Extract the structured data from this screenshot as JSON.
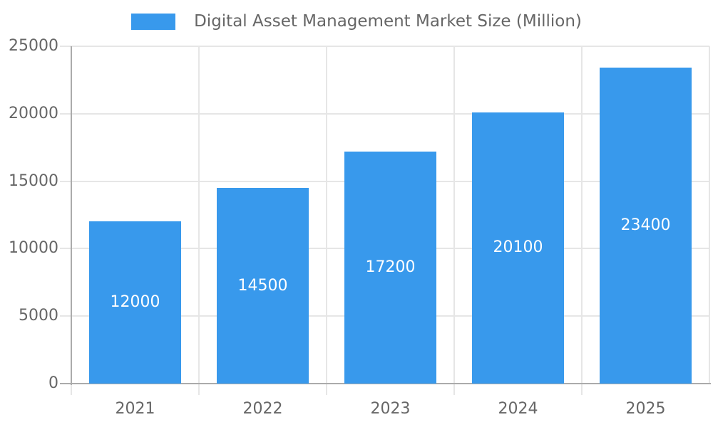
{
  "chart_data": {
    "type": "bar",
    "title": "Digital Asset Management Market Size (Million)",
    "categories": [
      "2021",
      "2022",
      "2023",
      "2024",
      "2025"
    ],
    "values": [
      12000,
      14500,
      17200,
      20100,
      23400
    ],
    "series": [
      {
        "name": "Digital Asset Management Market Size (Million)",
        "values": [
          12000,
          14500,
          17200,
          20100,
          23400
        ]
      }
    ],
    "xlabel": "",
    "ylabel": "",
    "ylim": [
      0,
      25000
    ],
    "yticks": [
      0,
      5000,
      10000,
      15000,
      20000,
      25000
    ],
    "grid": true,
    "legend_position": "top",
    "value_label_position": "inside-center"
  },
  "legend": {
    "label": "Digital Asset Management Market Size (Million)"
  },
  "colors": {
    "bar": "#3899ec",
    "grid_line": "#e6e6e6",
    "axis_line": "#ababab",
    "tick_text": "#666666",
    "legend_text": "#666666",
    "value_label_text": "#ffffff",
    "background": "#ffffff"
  }
}
